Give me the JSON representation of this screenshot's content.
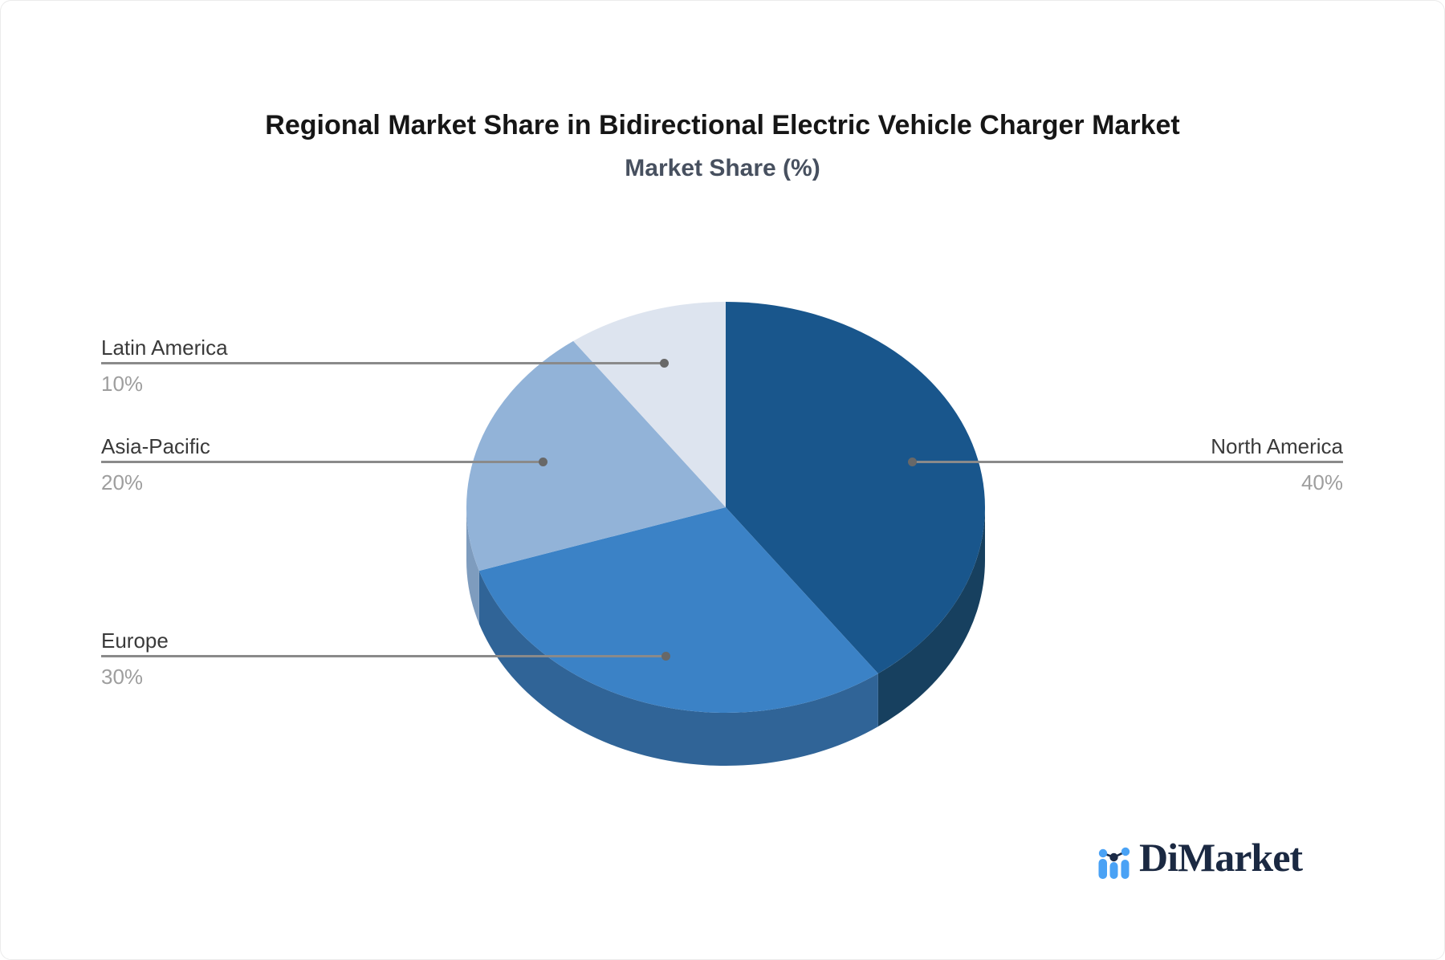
{
  "page": {
    "background": "#ffffff",
    "border_color": "#ebebeb"
  },
  "chart_data": {
    "type": "pie",
    "style": "3d-pie-with-depth",
    "title": "Regional Market Share in Bidirectional Electric Vehicle Charger Market",
    "subtitle": "Market Share (%)",
    "unit": "%",
    "start_angle_deg": 0,
    "direction": "clockwise",
    "legend_position": "callout-labels",
    "slices": [
      {
        "label": "North America",
        "value": 40,
        "value_label": "40%",
        "color": "#19568C",
        "side_color": "#17405F",
        "callout_side": "right"
      },
      {
        "label": "Europe",
        "value": 30,
        "value_label": "30%",
        "color": "#3B82C6",
        "side_color": "#306497",
        "callout_side": "left"
      },
      {
        "label": "Asia-Pacific",
        "value": 20,
        "value_label": "20%",
        "color": "#92B3D8",
        "side_color": "#7E9CBE",
        "callout_side": "left"
      },
      {
        "label": "Latin America",
        "value": 10,
        "value_label": "10%",
        "color": "#DDE4EF",
        "side_color": "#C3CEDD",
        "callout_side": "left"
      }
    ],
    "text_colors": {
      "title": "#161616",
      "subtitle": "#47505F",
      "label_text": "#3A3A3A",
      "value_text": "#9E9E9E",
      "leader_line": "#8A8A8A",
      "leader_dot": "#686868"
    }
  },
  "branding": {
    "logo_text": "DiMarket",
    "logo_icon": "bar-chart-trend-icon",
    "icon_blue": "#4AA2F5",
    "icon_navy": "#1C2B47",
    "text_color": "#1B2942"
  }
}
